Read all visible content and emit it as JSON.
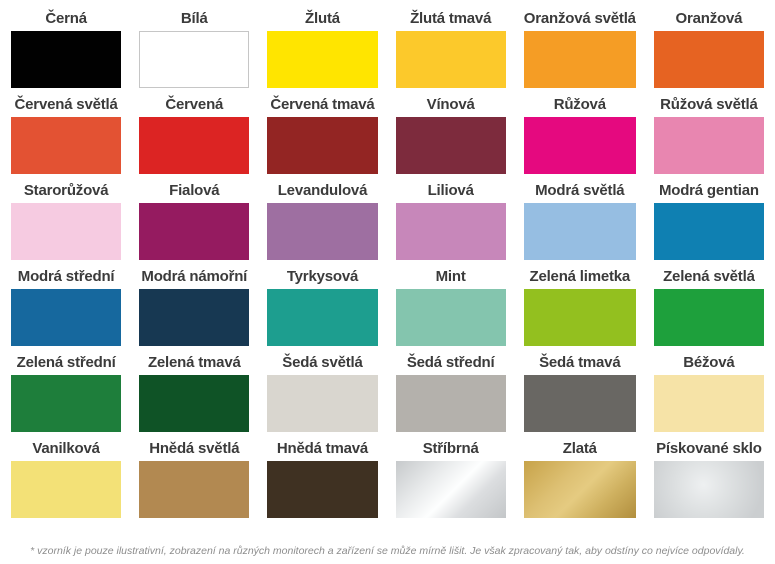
{
  "page": {
    "background": "#ffffff",
    "label_color": "#3b3b3b",
    "footnote_color": "#8d8d8d"
  },
  "swatches": [
    {
      "name": "Černá",
      "css": "#010101"
    },
    {
      "name": "Bílá",
      "css": "#ffffff",
      "border": "#c6c6c6"
    },
    {
      "name": "Žlutá",
      "css": "#ffe500"
    },
    {
      "name": "Žlutá tmavá",
      "css": "#fcc92b"
    },
    {
      "name": "Oranžová světlá",
      "css": "#f59d25"
    },
    {
      "name": "Oranžová",
      "css": "#e66322"
    },
    {
      "name": "Červená světlá",
      "css": "#e35233"
    },
    {
      "name": "Červená",
      "css": "#dc2423"
    },
    {
      "name": "Červená tmavá",
      "css": "#932523"
    },
    {
      "name": "Vínová",
      "css": "#7d2b3d"
    },
    {
      "name": "Růžová",
      "css": "#e5097f"
    },
    {
      "name": "Růžová světlá",
      "css": "#e886b0"
    },
    {
      "name": "Starorůžová",
      "css": "#f6cbe1"
    },
    {
      "name": "Fialová",
      "css": "#951b60"
    },
    {
      "name": "Levandulová",
      "css": "#9e6fa1"
    },
    {
      "name": "Liliová",
      "css": "#c787ba"
    },
    {
      "name": "Modrá světlá",
      "css": "#96bee2"
    },
    {
      "name": "Modrá gentian",
      "css": "#0f80b2"
    },
    {
      "name": "Modrá střední",
      "css": "#16689e"
    },
    {
      "name": "Modrá námořní",
      "css": "#173852"
    },
    {
      "name": "Tyrkysová",
      "css": "#1d9e8f"
    },
    {
      "name": "Mint",
      "css": "#84c5ae"
    },
    {
      "name": "Zelená limetka",
      "css": "#93c01f"
    },
    {
      "name": "Zelená světlá",
      "css": "#1ea03c"
    },
    {
      "name": "Zelená střední",
      "css": "#1e7e3b"
    },
    {
      "name": "Zelená tmavá",
      "css": "#0f5326"
    },
    {
      "name": "Šedá světlá",
      "css": "#d9d6cf"
    },
    {
      "name": "Šedá střední",
      "css": "#b4b1ac"
    },
    {
      "name": "Šedá tmavá",
      "css": "#696763"
    },
    {
      "name": "Béžová",
      "css": "#f6e3a7"
    },
    {
      "name": "Vanilková",
      "css": "#f3e177"
    },
    {
      "name": "Hnědá světlá",
      "css": "#b28951"
    },
    {
      "name": "Hnědá tmavá",
      "css": "#3f3122"
    },
    {
      "name": "Stříbrná",
      "css": "linear-gradient(135deg, #c6c9cb 0%, #e9ebec 32%, #fdfefe 52%, #dcdee0 70%, #c3c6c8 100%)"
    },
    {
      "name": "Zlatá",
      "css": "linear-gradient(135deg, #c7a349 0%, #ddc073 35%, #e5cb81 52%, #cfb160 72%, #b18e3d 100%)"
    },
    {
      "name": "Pískované sklo",
      "css": "radial-gradient(circle at 45% 42%, #eef0f1 0%, #dde0e1 40%, #cbced0 85%)"
    }
  ],
  "footnote": "* vzorník je pouze ilustrativní, zobrazení na různých monitorech a zařízení se může mírně lišit. Je však zpracovaný tak, aby odstíny co nejvíce odpovídaly."
}
